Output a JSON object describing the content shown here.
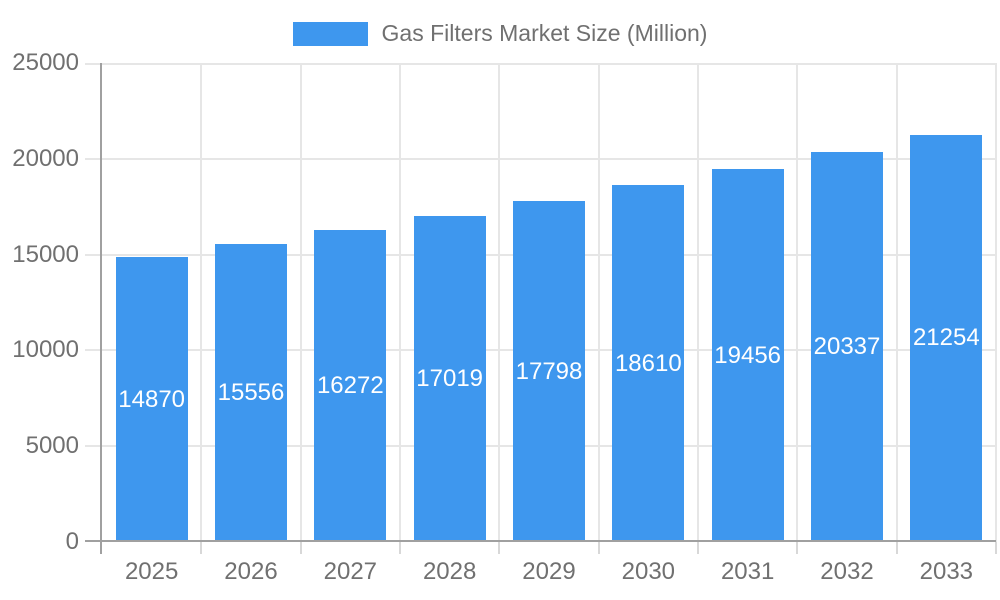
{
  "legend": {
    "items": [
      {
        "label": "Gas Filters Market Size (Million)",
        "color": "#3E97EE"
      }
    ]
  },
  "colors": {
    "bar": "#3E97EE",
    "grid": "#E6E6E6",
    "axis": "#A0A0A0",
    "tick": "#D8D8D8",
    "axis_text": "#707070",
    "value_text": "#FFFFFF",
    "background": "#FFFFFF"
  },
  "chart_data": {
    "type": "bar",
    "title": "Gas Filters Market Size (Million)",
    "categories": [
      "2025",
      "2026",
      "2027",
      "2028",
      "2029",
      "2030",
      "2031",
      "2032",
      "2033"
    ],
    "values": [
      14870,
      15556,
      16272,
      17019,
      17798,
      18610,
      19456,
      20337,
      21254
    ],
    "xlabel": "",
    "ylabel": "",
    "ylim": [
      0,
      25000
    ],
    "yticks": [
      0,
      5000,
      10000,
      15000,
      20000,
      25000
    ],
    "grid": true,
    "legend_position": "top-center",
    "value_labels": "inside-center-white"
  }
}
